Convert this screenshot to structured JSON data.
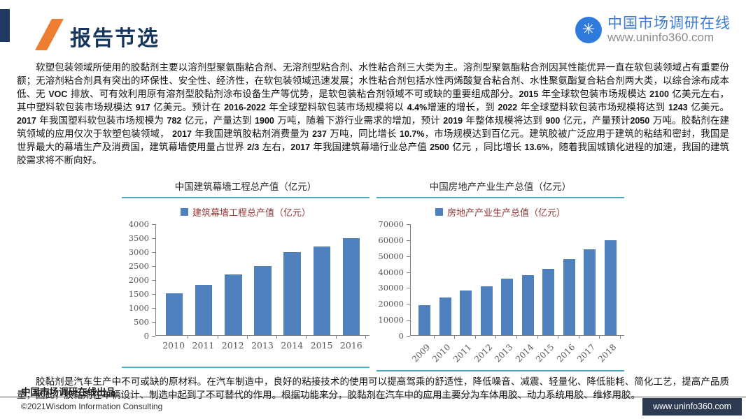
{
  "header": {
    "title": "报告节选",
    "brand": {
      "name": "中国市场调研在线",
      "url": "www.uninfo360.com",
      "icon_glyph": "✳"
    }
  },
  "paragraphs": {
    "p1": [
      {
        "t": "软塑包装领域所使用的胶黏剂主要以溶剂型聚氨酯粘合剂、无溶剂型粘合剂、水性粘合剂三大类为主。溶剂型聚氨酯粘合剂因其性能优异一直在软包装领域占有重要份额；无溶剂粘合剂具有突出的环保性、安全性、经济性，在软包装领域迅速发展；水性粘合剂包括水性丙烯酸复合粘合剂、水性聚氨酯复合粘合剂两大类，以综合涂布成本低、无 ",
        "b": false
      },
      {
        "t": "VOC",
        "b": true
      },
      {
        "t": " 排放、可有效利用原有溶剂型胶黏剂涂布设备生产等优势，是软包装粘合剂领域不可或缺的重要组成部分。",
        "b": false
      },
      {
        "t": "2015",
        "b": true
      },
      {
        "t": " 年全球软包装市场规模达 ",
        "b": false
      },
      {
        "t": "2100",
        "b": true
      },
      {
        "t": " 亿美元左右，其中塑料软包装市场规模达 ",
        "b": false
      },
      {
        "t": "917",
        "b": true
      },
      {
        "t": " 亿美元。预计在 ",
        "b": false
      },
      {
        "t": "2016-2022",
        "b": true
      },
      {
        "t": " 年全球塑料软包装市场规模将以 ",
        "b": false
      },
      {
        "t": "4.4%",
        "b": true
      },
      {
        "t": "增速的增长，到 ",
        "b": false
      },
      {
        "t": "2022",
        "b": true
      },
      {
        "t": " 年全球塑料软包装市场规模将达到 ",
        "b": false
      },
      {
        "t": "1243",
        "b": true
      },
      {
        "t": " 亿美元。",
        "b": false
      },
      {
        "t": "2017",
        "b": true
      },
      {
        "t": " 年我国塑料软包装市场规模为 ",
        "b": false
      },
      {
        "t": "782",
        "b": true
      },
      {
        "t": " 亿元，产量达到 ",
        "b": false
      },
      {
        "t": "1900",
        "b": true
      },
      {
        "t": " 万吨，随着下游行业需求的增加，预计 ",
        "b": false
      },
      {
        "t": "2019",
        "b": true
      },
      {
        "t": " 年整体规模将达到 ",
        "b": false
      },
      {
        "t": "900",
        "b": true
      },
      {
        "t": " 亿元，产量预计",
        "b": false
      },
      {
        "t": "2050",
        "b": true
      },
      {
        "t": " 万吨。胶黏剂在建筑领域的应用仅次于软塑包装领域， ",
        "b": false
      },
      {
        "t": "2017",
        "b": true
      },
      {
        "t": " 年我国建筑胶粘剂消费量为 ",
        "b": false
      },
      {
        "t": "237",
        "b": true
      },
      {
        "t": " 万吨，同比增长 ",
        "b": false
      },
      {
        "t": "10.7%",
        "b": true
      },
      {
        "t": "，市场规模达到百亿元。建筑胶被广泛应用于建筑的粘结和密封，我国是世界最大的幕墙生产及消费国，建筑幕墙使用量占世界 ",
        "b": false
      },
      {
        "t": "2/3",
        "b": true
      },
      {
        "t": " 左右，",
        "b": false
      },
      {
        "t": "2017",
        "b": true
      },
      {
        "t": " 年我国建筑幕墙行业总产值 ",
        "b": false
      },
      {
        "t": "2500",
        "b": true
      },
      {
        "t": " 亿元 ，同比增长 ",
        "b": false
      },
      {
        "t": "13.6%",
        "b": true
      },
      {
        "t": "，随着我国城镇化进程的加速，我国的建筑胶需求将不断向好。",
        "b": false
      }
    ],
    "p2": [
      {
        "t": "胶黏剂是汽车生产中不可或缺的原材料。在汽车制造中，良好的粘接技术的使用可以提高驾乘的舒适性，降低噪音、减震、轻量化、降低能耗、简化工艺，提高产品质量，因此，胶黏剂在车辆设计、制造中起到了不可替代的作用。根据功能来分，胶黏剂在汽车中的应用主要分为车体用胶、动力系统用胶、维修用胶。",
        "b": false
      }
    ]
  },
  "chart_data": [
    {
      "type": "bar",
      "title": "中国建筑幕墙工程总产值（亿元）",
      "legend": "建筑幕墙工程总产值（亿元）",
      "categories": [
        "2010",
        "2011",
        "2012",
        "2013",
        "2014",
        "2015",
        "2016"
      ],
      "values": [
        1500,
        1800,
        2200,
        2500,
        3000,
        3200,
        3500
      ],
      "ylim": [
        0,
        4000
      ],
      "ytick_step": 500,
      "bar_color": "#4E81BD",
      "x_label_rotation": 0,
      "grid": false,
      "legend_position": "top"
    },
    {
      "type": "bar",
      "title": "中国房地产产业生产总值（亿元）",
      "legend": "房地产产业生产总值（亿元）",
      "categories": [
        "2009",
        "2010",
        "2011",
        "2012",
        "2013",
        "2014",
        "2015",
        "2016",
        "2017",
        "2018"
      ],
      "values": [
        19000,
        24000,
        28000,
        31000,
        35500,
        38000,
        42000,
        48000,
        54000,
        60000
      ],
      "ylim": [
        0,
        70000
      ],
      "ytick_step": 10000,
      "bar_color": "#4E81BD",
      "x_label_rotation": -45,
      "grid": false,
      "legend_position": "top"
    }
  ],
  "footer": {
    "producer": "中国市场调研在线出品",
    "copyright": "©2021Wisdom Information Consulting",
    "badge_url": "www.uninfo360.com"
  },
  "colors": {
    "accent_orange": "#ED7D31",
    "corner_navy": "#1F3864",
    "title_navy": "#17365D",
    "bar_blue": "#4E81BD",
    "rule_teal": "#4BACC6",
    "legend_red": "#943634",
    "brand_blue": "#3B7CD4",
    "badge_bg": "#2C3B52"
  }
}
